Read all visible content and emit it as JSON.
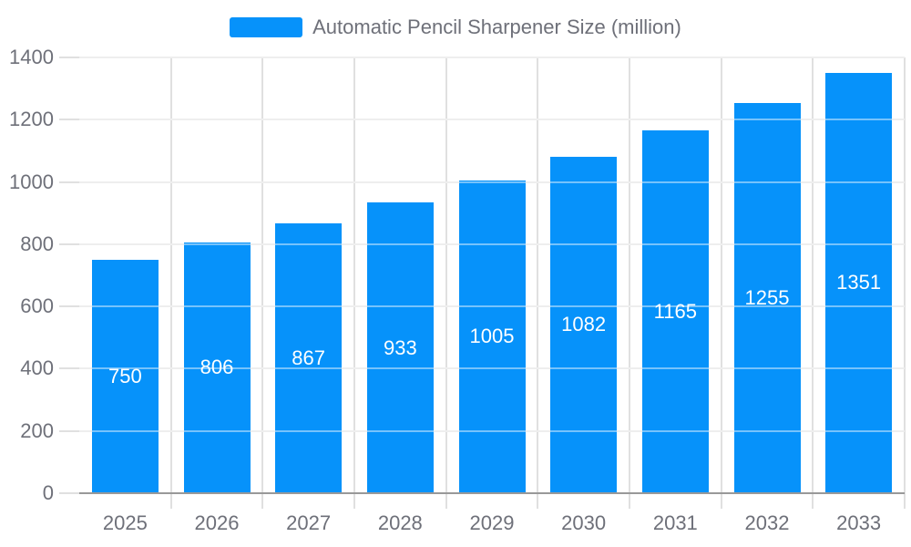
{
  "legend": {
    "label": "Automatic Pencil Sharpener Size (million)"
  },
  "colors": {
    "bar": "#0692fa",
    "grid": "#e0e0e0",
    "axis_line": "#999999",
    "axis_text": "#6e7079",
    "value_text": "#ffffff"
  },
  "chart_data": {
    "type": "bar",
    "title": "Automatic Pencil Sharpener Size (million)",
    "categories": [
      "2025",
      "2026",
      "2027",
      "2028",
      "2029",
      "2030",
      "2031",
      "2032",
      "2033"
    ],
    "series": [
      {
        "name": "Automatic Pencil Sharpener Size (million)",
        "values": [
          750,
          806,
          867,
          933,
          1005,
          1082,
          1165,
          1255,
          1351
        ]
      }
    ],
    "xlabel": "",
    "ylabel": "",
    "ylim": [
      0,
      1400
    ],
    "ytick_step": 200,
    "ytick_labels": [
      "0",
      "200",
      "400",
      "600",
      "800",
      "1000",
      "1200",
      "1400"
    ],
    "grid": true,
    "legend_position": "top-center",
    "value_labels": "inside-center"
  }
}
